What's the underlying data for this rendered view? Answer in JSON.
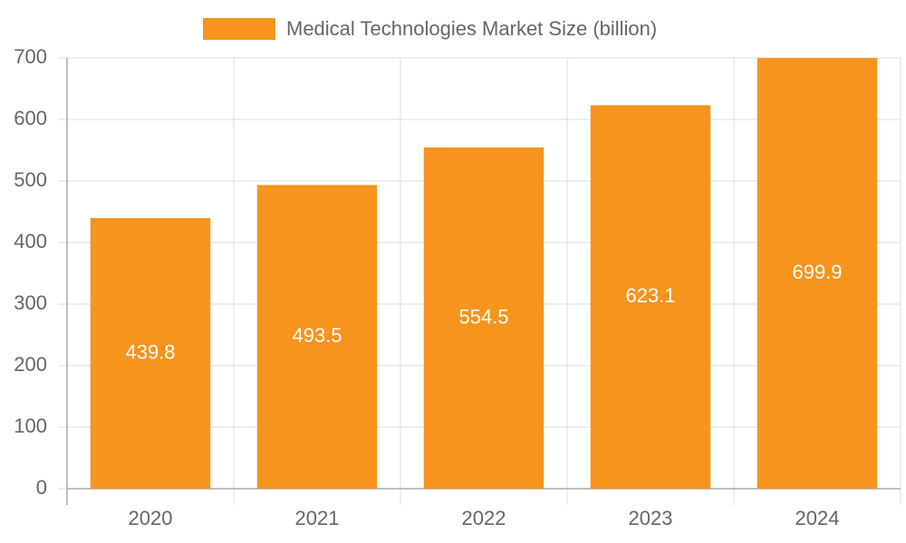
{
  "chart_data": {
    "type": "bar",
    "categories": [
      "2020",
      "2021",
      "2022",
      "2023",
      "2024"
    ],
    "series": [
      {
        "name": "Medical Technologies Market Size (billion)",
        "color": "#f7941d",
        "values": [
          439.8,
          493.5,
          554.5,
          623.1,
          699.9
        ]
      }
    ],
    "ylim": [
      0,
      700
    ],
    "yticks": [
      0,
      100,
      200,
      300,
      400,
      500,
      600,
      700
    ],
    "grid": true,
    "legend": "top"
  }
}
